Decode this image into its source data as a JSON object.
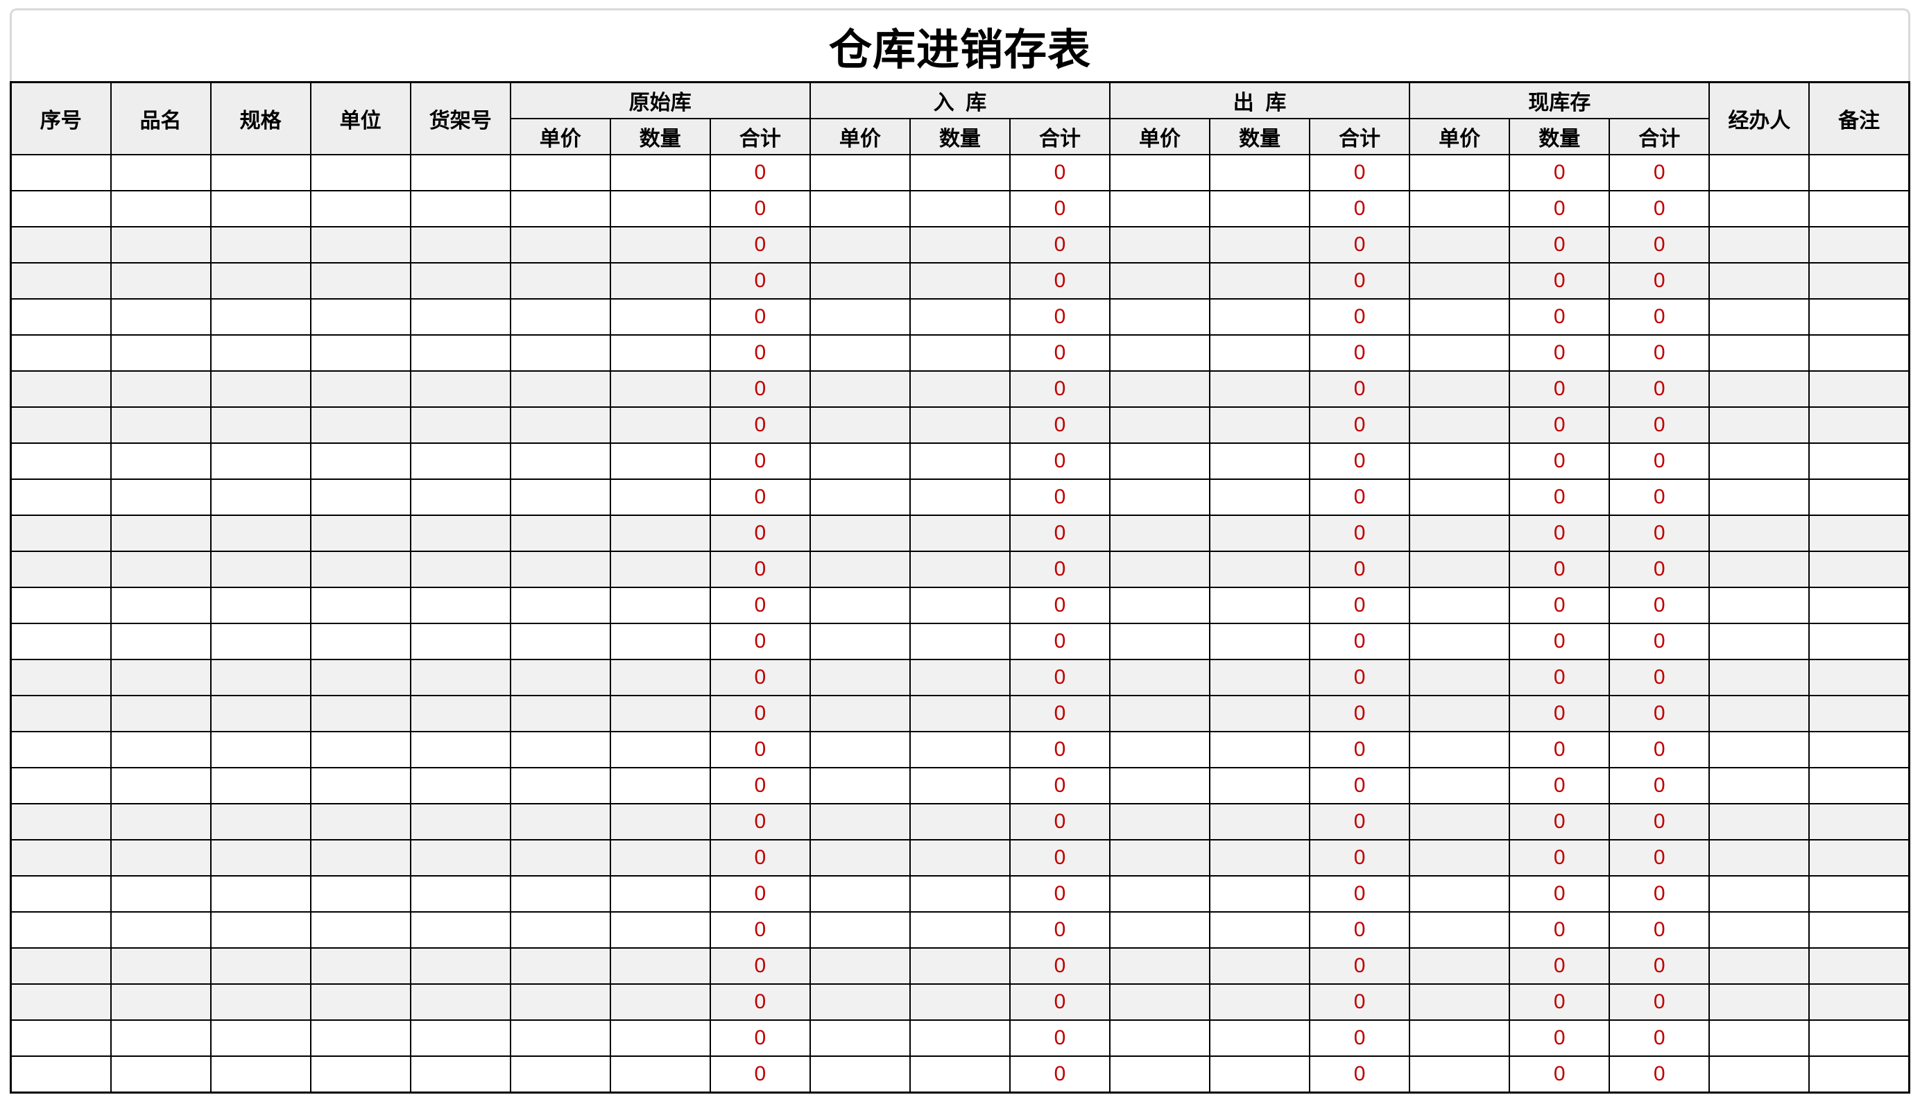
{
  "page": {
    "title": "仓库进销存表"
  },
  "colors": {
    "value_red": "#c00000",
    "header_bg": "#eeeeee",
    "stripe_bg": "#f1f1f1",
    "border": "#000000",
    "frame": "#d9d9d9"
  },
  "table": {
    "columns_left": [
      "序号",
      "品名",
      "规格",
      "单位",
      "货架号"
    ],
    "groups": [
      {
        "label": "原始库",
        "children": [
          "单价",
          "数量",
          "合计"
        ]
      },
      {
        "label": "入  库",
        "children": [
          "单价",
          "数量",
          "合计"
        ]
      },
      {
        "label": "出  库",
        "children": [
          "单价",
          "数量",
          "合计"
        ]
      },
      {
        "label": "现库存",
        "children": [
          "单价",
          "数量",
          "合计"
        ]
      }
    ],
    "columns_right": [
      "经办人",
      "备注"
    ],
    "column_keys": [
      "serial",
      "product-name",
      "spec",
      "unit",
      "shelf-no",
      "orig-price",
      "orig-qty",
      "orig-total",
      "in-price",
      "in-qty",
      "in-total",
      "out-price",
      "out-qty",
      "out-total",
      "cur-price",
      "cur-qty",
      "cur-total",
      "handler",
      "remark"
    ],
    "rows": [
      [
        "",
        "",
        "",
        "",
        "",
        "",
        "",
        "0",
        "",
        "",
        "0",
        "",
        "",
        "0",
        "",
        "0",
        "0",
        "",
        ""
      ],
      [
        "",
        "",
        "",
        "",
        "",
        "",
        "",
        "0",
        "",
        "",
        "0",
        "",
        "",
        "0",
        "",
        "0",
        "0",
        "",
        ""
      ],
      [
        "",
        "",
        "",
        "",
        "",
        "",
        "",
        "0",
        "",
        "",
        "0",
        "",
        "",
        "0",
        "",
        "0",
        "0",
        "",
        ""
      ],
      [
        "",
        "",
        "",
        "",
        "",
        "",
        "",
        "0",
        "",
        "",
        "0",
        "",
        "",
        "0",
        "",
        "0",
        "0",
        "",
        ""
      ],
      [
        "",
        "",
        "",
        "",
        "",
        "",
        "",
        "0",
        "",
        "",
        "0",
        "",
        "",
        "0",
        "",
        "0",
        "0",
        "",
        ""
      ],
      [
        "",
        "",
        "",
        "",
        "",
        "",
        "",
        "0",
        "",
        "",
        "0",
        "",
        "",
        "0",
        "",
        "0",
        "0",
        "",
        ""
      ],
      [
        "",
        "",
        "",
        "",
        "",
        "",
        "",
        "0",
        "",
        "",
        "0",
        "",
        "",
        "0",
        "",
        "0",
        "0",
        "",
        ""
      ],
      [
        "",
        "",
        "",
        "",
        "",
        "",
        "",
        "0",
        "",
        "",
        "0",
        "",
        "",
        "0",
        "",
        "0",
        "0",
        "",
        ""
      ],
      [
        "",
        "",
        "",
        "",
        "",
        "",
        "",
        "0",
        "",
        "",
        "0",
        "",
        "",
        "0",
        "",
        "0",
        "0",
        "",
        ""
      ],
      [
        "",
        "",
        "",
        "",
        "",
        "",
        "",
        "0",
        "",
        "",
        "0",
        "",
        "",
        "0",
        "",
        "0",
        "0",
        "",
        ""
      ],
      [
        "",
        "",
        "",
        "",
        "",
        "",
        "",
        "0",
        "",
        "",
        "0",
        "",
        "",
        "0",
        "",
        "0",
        "0",
        "",
        ""
      ],
      [
        "",
        "",
        "",
        "",
        "",
        "",
        "",
        "0",
        "",
        "",
        "0",
        "",
        "",
        "0",
        "",
        "0",
        "0",
        "",
        ""
      ],
      [
        "",
        "",
        "",
        "",
        "",
        "",
        "",
        "0",
        "",
        "",
        "0",
        "",
        "",
        "0",
        "",
        "0",
        "0",
        "",
        ""
      ],
      [
        "",
        "",
        "",
        "",
        "",
        "",
        "",
        "0",
        "",
        "",
        "0",
        "",
        "",
        "0",
        "",
        "0",
        "0",
        "",
        ""
      ],
      [
        "",
        "",
        "",
        "",
        "",
        "",
        "",
        "0",
        "",
        "",
        "0",
        "",
        "",
        "0",
        "",
        "0",
        "0",
        "",
        ""
      ],
      [
        "",
        "",
        "",
        "",
        "",
        "",
        "",
        "0",
        "",
        "",
        "0",
        "",
        "",
        "0",
        "",
        "0",
        "0",
        "",
        ""
      ],
      [
        "",
        "",
        "",
        "",
        "",
        "",
        "",
        "0",
        "",
        "",
        "0",
        "",
        "",
        "0",
        "",
        "0",
        "0",
        "",
        ""
      ],
      [
        "",
        "",
        "",
        "",
        "",
        "",
        "",
        "0",
        "",
        "",
        "0",
        "",
        "",
        "0",
        "",
        "0",
        "0",
        "",
        ""
      ],
      [
        "",
        "",
        "",
        "",
        "",
        "",
        "",
        "0",
        "",
        "",
        "0",
        "",
        "",
        "0",
        "",
        "0",
        "0",
        "",
        ""
      ],
      [
        "",
        "",
        "",
        "",
        "",
        "",
        "",
        "0",
        "",
        "",
        "0",
        "",
        "",
        "0",
        "",
        "0",
        "0",
        "",
        ""
      ],
      [
        "",
        "",
        "",
        "",
        "",
        "",
        "",
        "0",
        "",
        "",
        "0",
        "",
        "",
        "0",
        "",
        "0",
        "0",
        "",
        ""
      ],
      [
        "",
        "",
        "",
        "",
        "",
        "",
        "",
        "0",
        "",
        "",
        "0",
        "",
        "",
        "0",
        "",
        "0",
        "0",
        "",
        ""
      ],
      [
        "",
        "",
        "",
        "",
        "",
        "",
        "",
        "0",
        "",
        "",
        "0",
        "",
        "",
        "0",
        "",
        "0",
        "0",
        "",
        ""
      ],
      [
        "",
        "",
        "",
        "",
        "",
        "",
        "",
        "0",
        "",
        "",
        "0",
        "",
        "",
        "0",
        "",
        "0",
        "0",
        "",
        ""
      ],
      [
        "",
        "",
        "",
        "",
        "",
        "",
        "",
        "0",
        "",
        "",
        "0",
        "",
        "",
        "0",
        "",
        "0",
        "0",
        "",
        ""
      ],
      [
        "",
        "",
        "",
        "",
        "",
        "",
        "",
        "0",
        "",
        "",
        "0",
        "",
        "",
        "0",
        "",
        "0",
        "0",
        "",
        ""
      ]
    ]
  }
}
